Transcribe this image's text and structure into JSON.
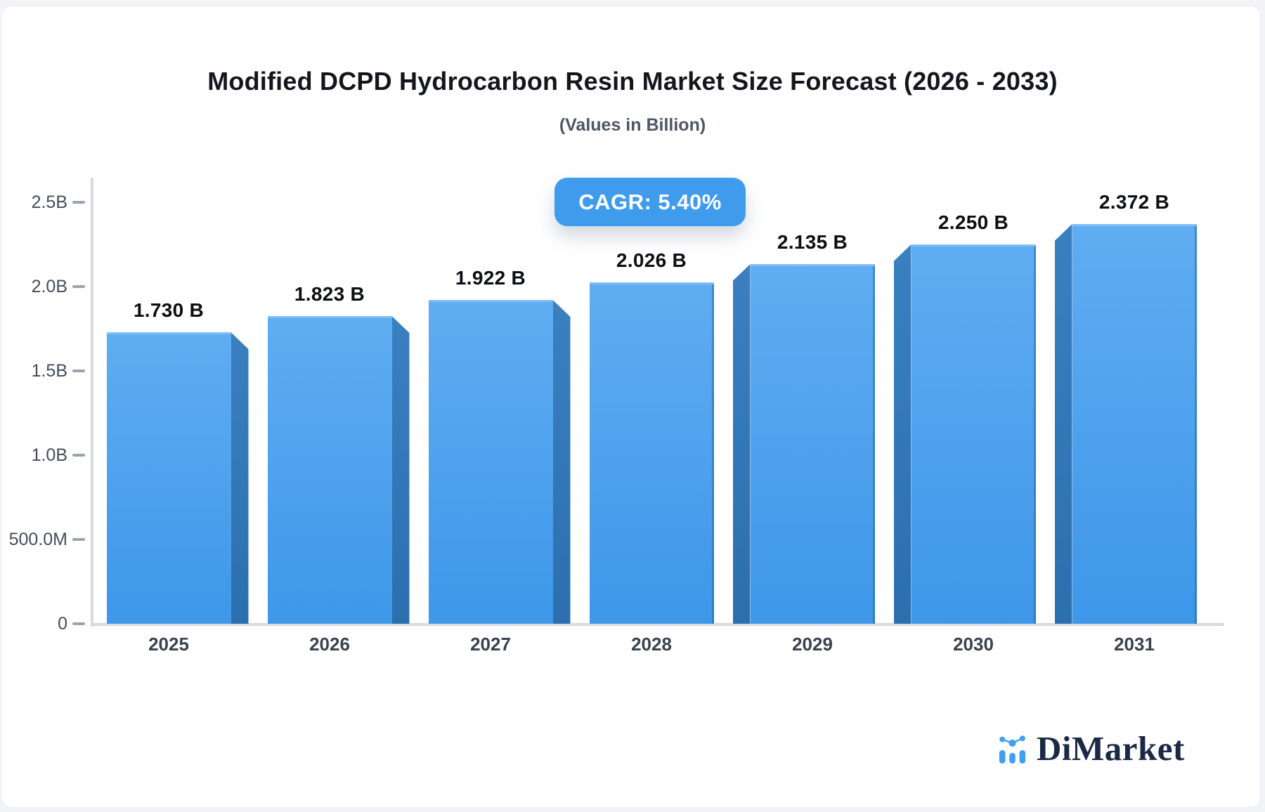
{
  "header": {
    "title": "Modified DCPD Hydrocarbon Resin Market Size Forecast (2026 - 2033)",
    "subtitle": "(Values in Billion)"
  },
  "badge": {
    "label": "CAGR: 5.40%",
    "color": "#3f9cec"
  },
  "chart_data": {
    "type": "bar",
    "title": "Modified DCPD Hydrocarbon Resin Market Size Forecast (2026 - 2033)",
    "subtitle": "(Values in Billion)",
    "cagr": "5.40%",
    "categories": [
      "2025",
      "2026",
      "2027",
      "2028",
      "2029",
      "2030",
      "2031"
    ],
    "values": [
      1.73,
      1.823,
      1.922,
      2.026,
      2.135,
      2.25,
      2.372
    ],
    "value_labels": [
      "1.730 B",
      "1.823 B",
      "1.922 B",
      "2.026 B",
      "2.135 B",
      "2.250 B",
      "2.372 B"
    ],
    "ylim": [
      0,
      2.5
    ],
    "yticks": [
      {
        "v": 0,
        "label": "0"
      },
      {
        "v": 0.5,
        "label": "500.0M"
      },
      {
        "v": 1.0,
        "label": "1.0B"
      },
      {
        "v": 1.5,
        "label": "1.5B"
      },
      {
        "v": 2.0,
        "label": "2.0B"
      },
      {
        "v": 2.5,
        "label": "2.5B"
      }
    ],
    "grid": false,
    "legend": false,
    "colors": {
      "bar_top": "#5fadf2",
      "bar_bottom": "#3e97e9",
      "bar_side": "#2e75b5",
      "badge": "#3f9cec",
      "axis": "#d7dade",
      "tick": "#9aa3ae"
    }
  },
  "logo": {
    "text": "DiMarket",
    "text_color": "#1a2944",
    "icon_color": "#419ff0",
    "icon": "bar-line-chart-icon"
  }
}
